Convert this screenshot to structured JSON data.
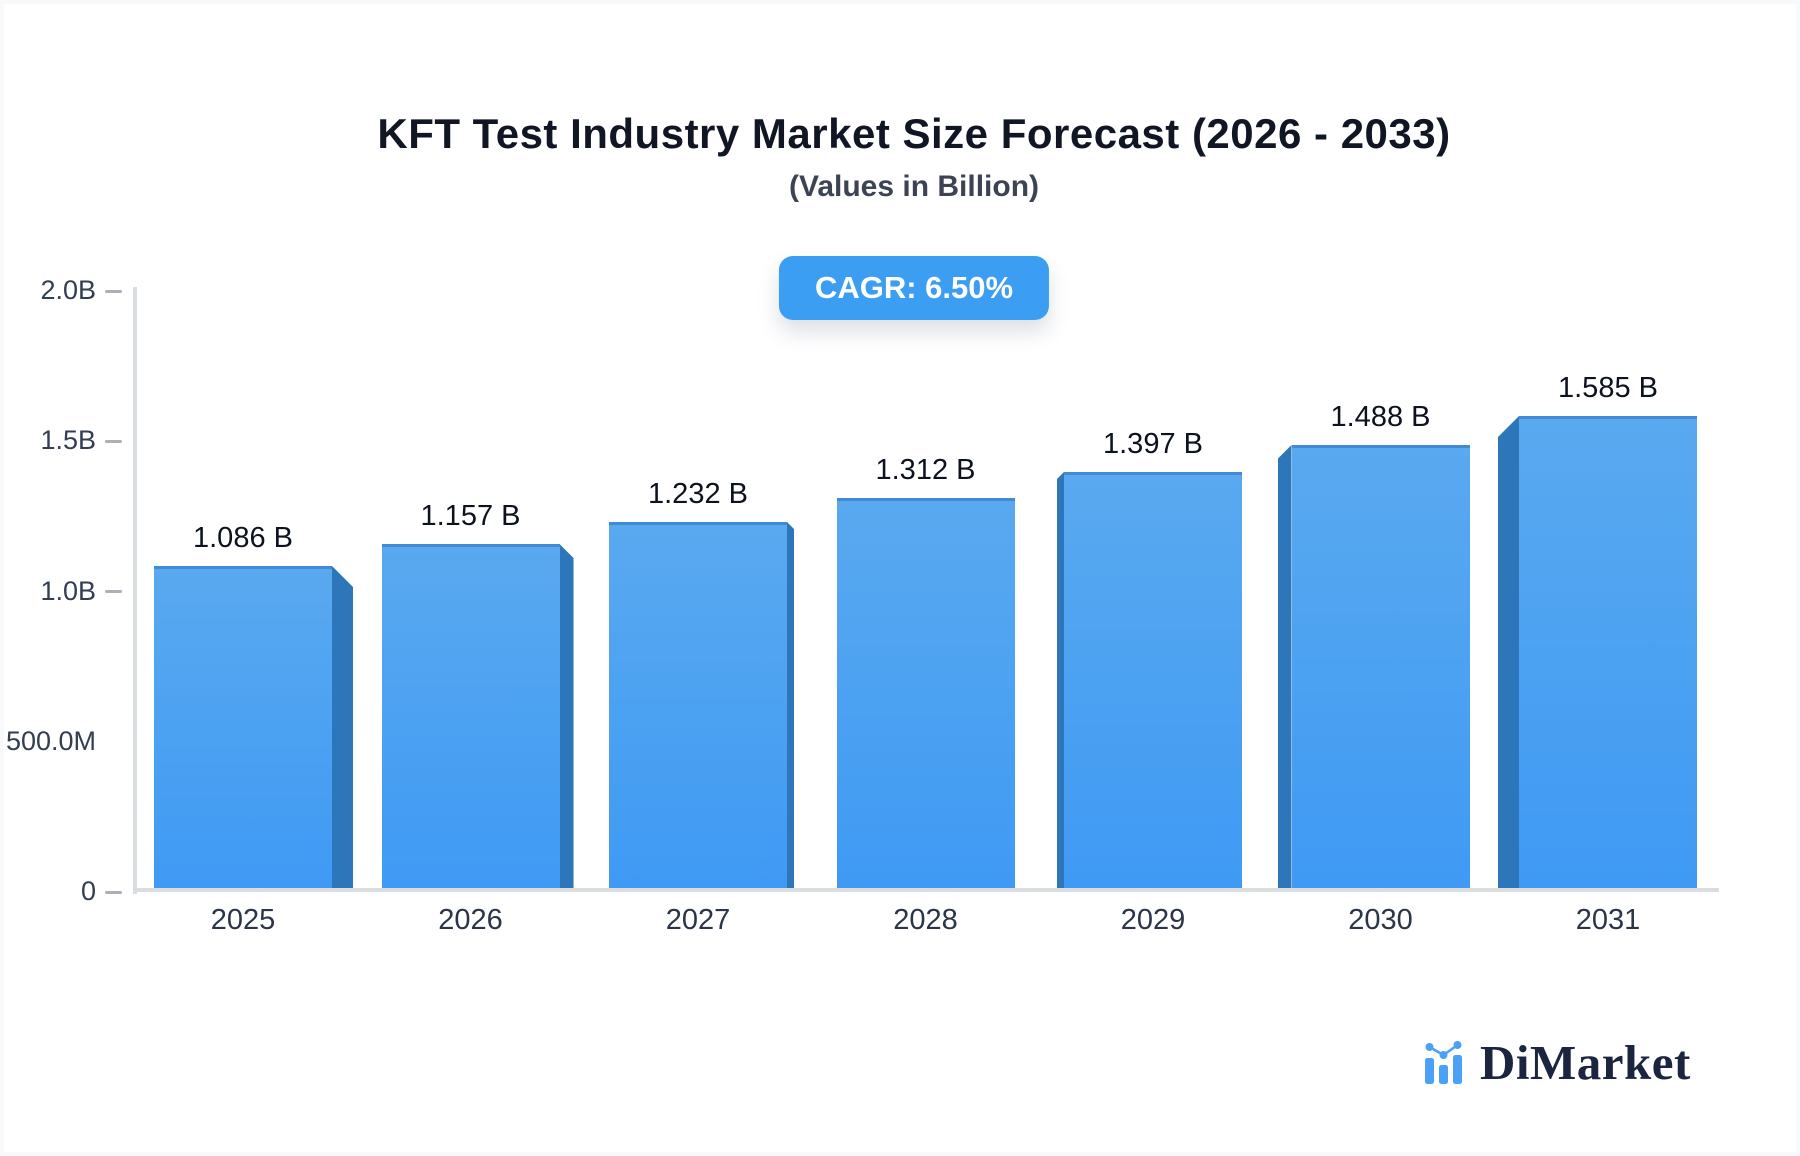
{
  "header": {
    "title": "KFT Test Industry Market Size Forecast (2026 - 2033)",
    "subtitle": "(Values in Billion)"
  },
  "badge": {
    "label": "CAGR: 6.50%",
    "background": "#3b9ef2",
    "text_color": "#ffffff"
  },
  "chart_data": {
    "type": "bar",
    "title": "KFT Test Industry Market Size Forecast (2026 - 2033)",
    "subtitle": "(Values in Billion)",
    "cagr": "6.50%",
    "categories": [
      "2025",
      "2026",
      "2027",
      "2028",
      "2029",
      "2030",
      "2031"
    ],
    "values": [
      1.086,
      1.157,
      1.232,
      1.312,
      1.397,
      1.488,
      1.585
    ],
    "bar_labels": [
      "1.086 B",
      "1.157 B",
      "1.232 B",
      "1.312 B",
      "1.397 B",
      "1.488 B",
      "1.585 B"
    ],
    "unit": "billion",
    "ylim": [
      0,
      2.0
    ],
    "yticks": [
      {
        "label": "2.0B",
        "value": 2.0,
        "dash": true
      },
      {
        "label": "1.5B",
        "value": 1.5,
        "dash": true
      },
      {
        "label": "1.0B",
        "value": 1.0,
        "dash": true
      },
      {
        "label": "500.0M",
        "value": 0.5,
        "dash": false
      },
      {
        "label": "0",
        "value": 0.0,
        "dash": true
      }
    ],
    "grid": false,
    "legend": false,
    "bar_style": "3d-extruded-center-perspective",
    "colors": {
      "bar_face_top": "#59a9ef",
      "bar_face_bottom": "#3f9af4",
      "bar_side": "#2d76b9",
      "bar_top_edge": "#418ad8",
      "axis_line": "#d9dde2",
      "tick": "#aab1ba",
      "value_text": "#0c1220",
      "axis_text": "#323e52"
    }
  },
  "logo": {
    "text": "DiMarket",
    "icon": "bar-chart-logo-icon",
    "icon_color": "#4aa1f5",
    "text_color": "#1b2540"
  }
}
